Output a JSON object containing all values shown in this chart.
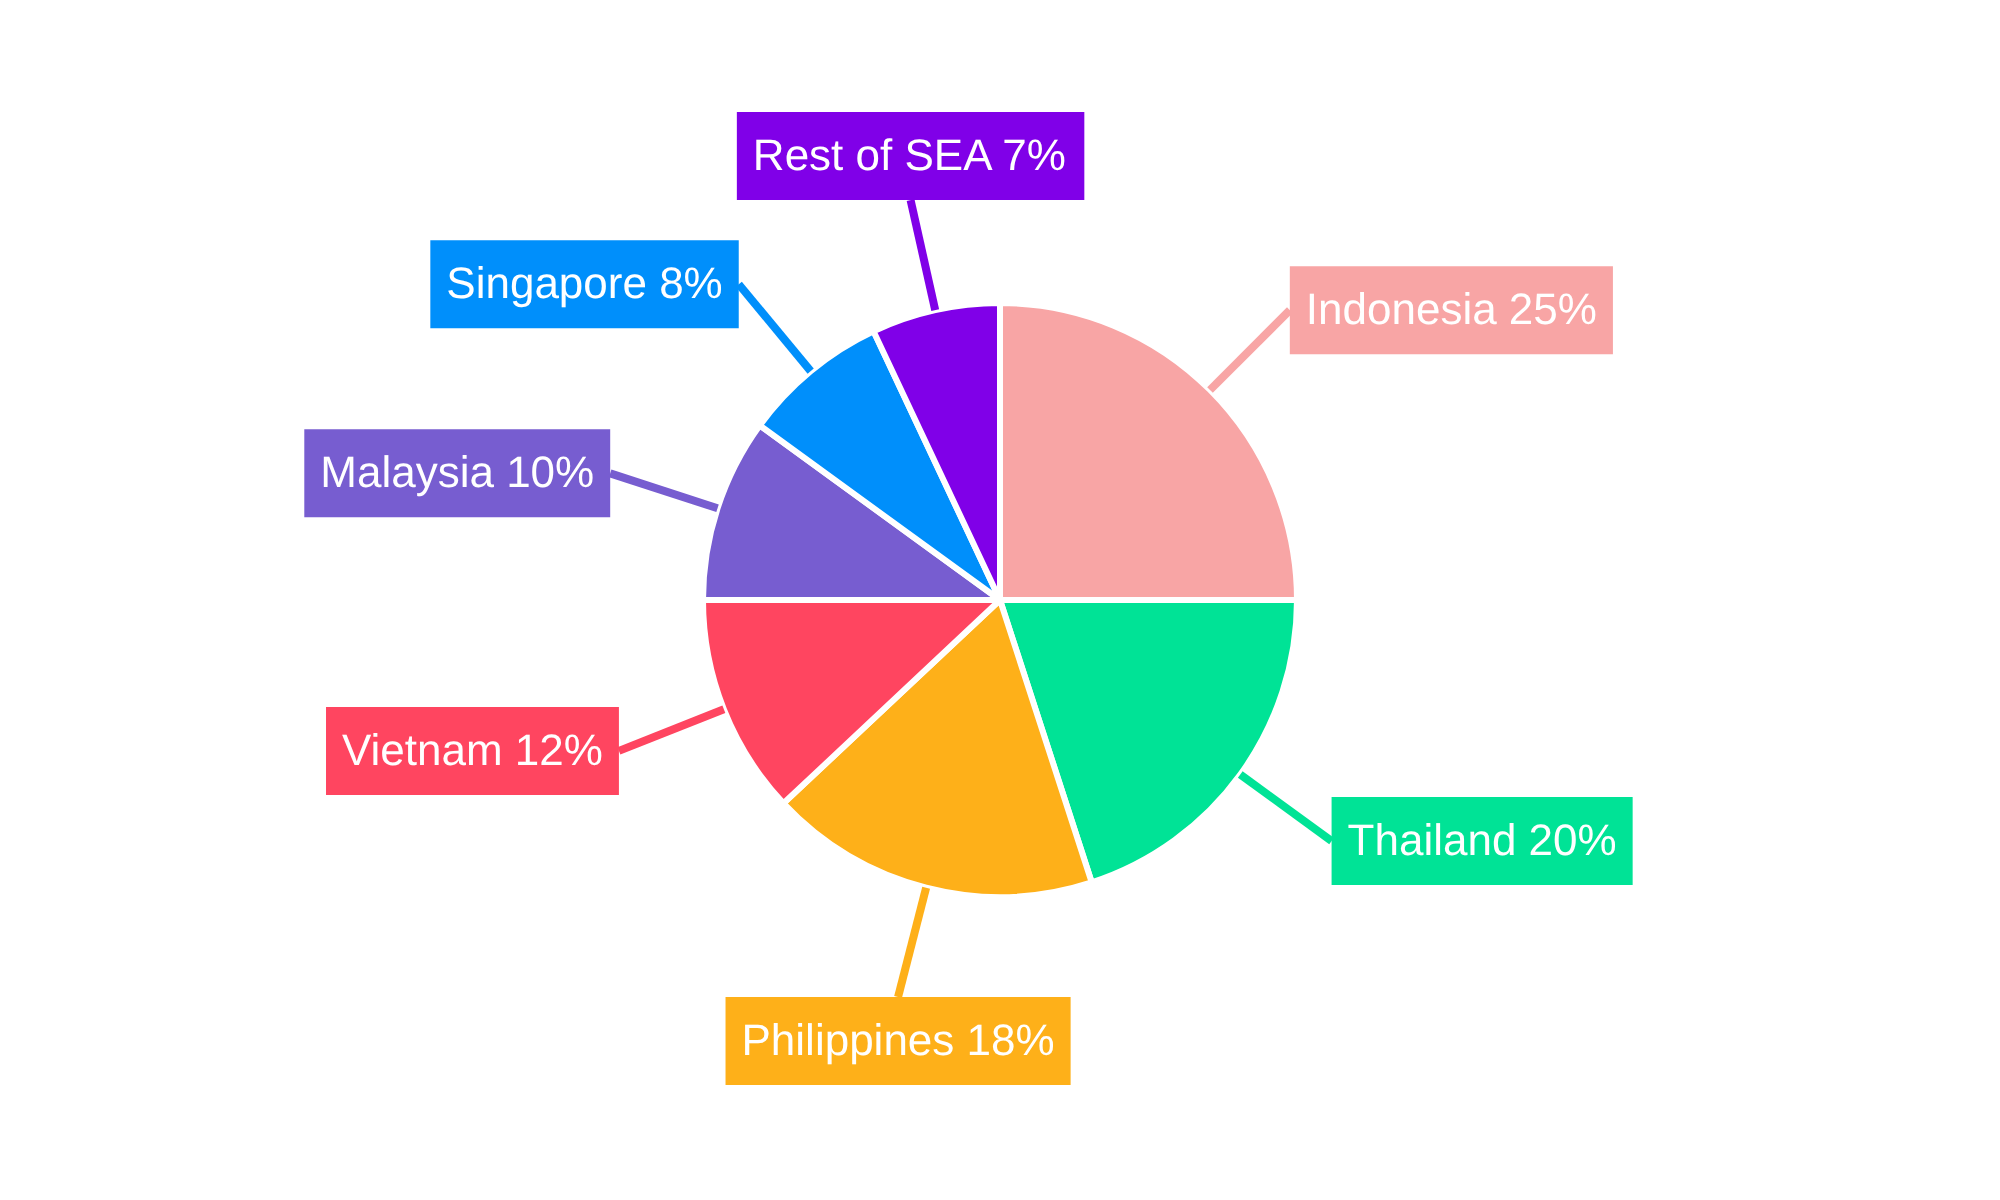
{
  "chart_data": {
    "type": "pie",
    "categories": [
      "Indonesia",
      "Thailand",
      "Philippines",
      "Vietnam",
      "Malaysia",
      "Singapore",
      "Rest of SEA"
    ],
    "values": [
      25,
      20,
      18,
      12,
      10,
      8,
      7
    ],
    "value_labels": [
      "25%",
      "20%",
      "18%",
      "12%",
      "10%",
      "8%",
      "7%"
    ],
    "colors": [
      "#f8a5a5",
      "#00e396",
      "#feb019",
      "#ff4560",
      "#775dd0",
      "#008ffb",
      "#8000e8"
    ],
    "legend": false
  }
}
